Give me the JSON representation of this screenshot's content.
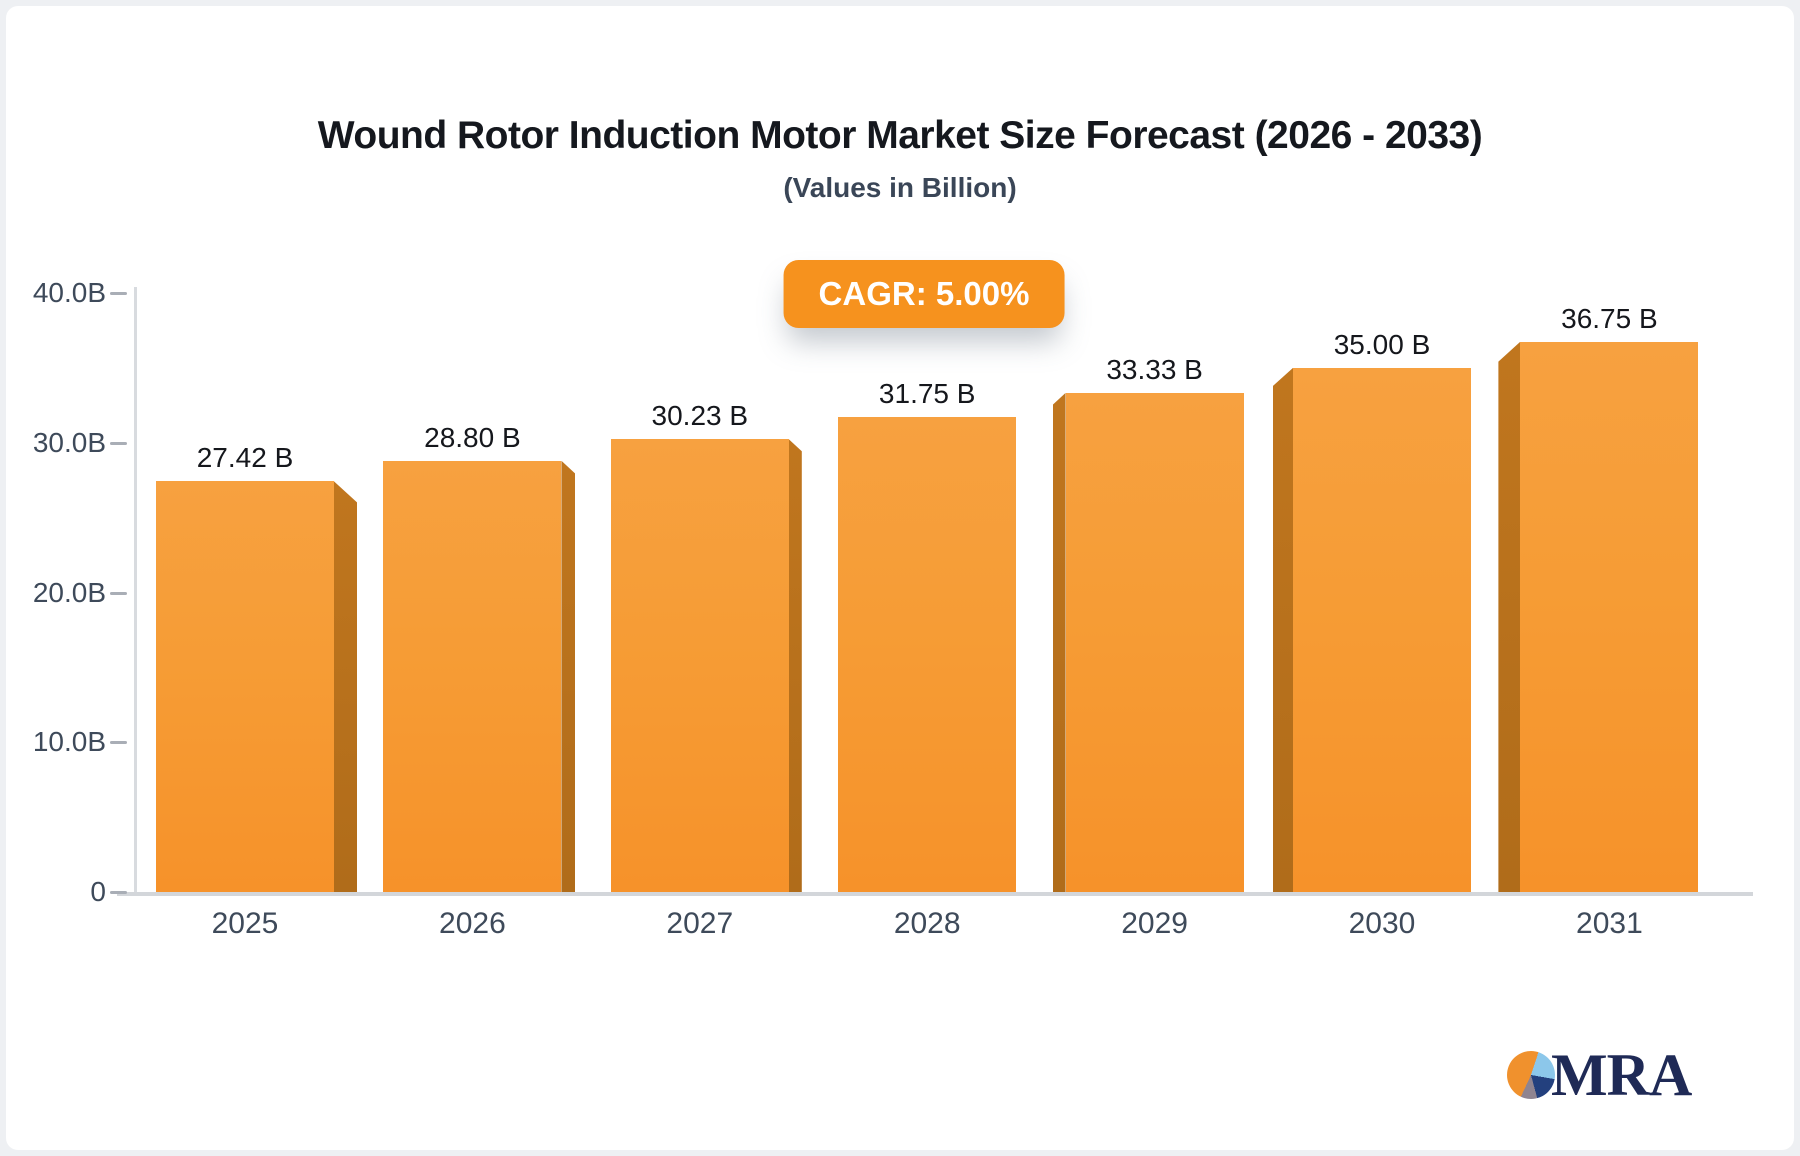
{
  "header": {
    "title": "Wound Rotor Induction Motor Market Size Forecast (2026 - 2033)",
    "subtitle": "(Values in Billion)"
  },
  "badge": {
    "label": "CAGR: 5.00%",
    "background": "#f6921e",
    "text_color": "#ffffff"
  },
  "chart_data": {
    "type": "bar",
    "title": "Wound Rotor Induction Motor Market Size Forecast (2026 - 2033)",
    "subtitle": "(Values in Billion)",
    "unit": "Billion",
    "cagr_label": "CAGR: 5.00%",
    "categories": [
      "2025",
      "2026",
      "2027",
      "2028",
      "2029",
      "2030",
      "2031"
    ],
    "values": [
      27.42,
      28.8,
      30.23,
      31.75,
      33.33,
      35.0,
      36.75
    ],
    "value_labels": [
      "27.42 B",
      "28.80 B",
      "30.23 B",
      "31.75 B",
      "33.33 B",
      "35.00 B",
      "36.75 B"
    ],
    "y_ticks": [
      "40.0B",
      "30.0B",
      "20.0B",
      "10.0B",
      "0"
    ],
    "y_tick_values": [
      40,
      30,
      20,
      10,
      0
    ],
    "ylim": [
      0,
      40
    ],
    "grid": false,
    "legend": false,
    "bar_color_top": "#f7a140",
    "bar_color_bottom": "#f6922a",
    "bar_side_color": "#b9721e",
    "axis_color": "#d6d9dd",
    "label_color": "#3e4a5a"
  },
  "logo": {
    "text": "MRA",
    "navy": "#1f2a56",
    "pie_orange": "#f0912d",
    "pie_lightblue": "#8cc7ea",
    "pie_darkblue": "#23407e",
    "pie_gray": "#8f8490"
  }
}
